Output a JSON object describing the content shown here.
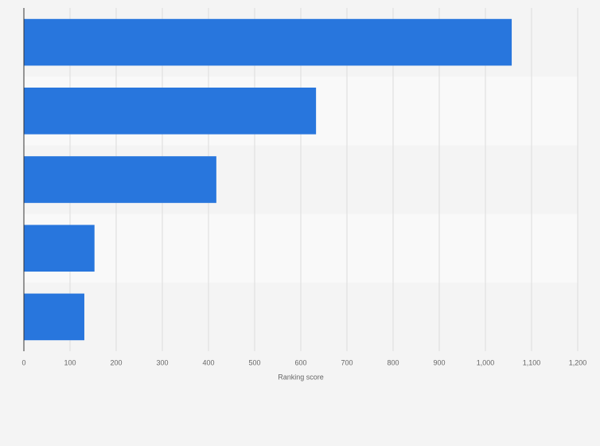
{
  "chart_data": {
    "type": "bar",
    "orientation": "horizontal",
    "x_label": "Ranking score",
    "categories": [
      null,
      null,
      null,
      null,
      null
    ],
    "values": [
      1057,
      633,
      417,
      153,
      131
    ],
    "color": "#2876dd",
    "xlim": [
      0,
      1200
    ],
    "xticks": [
      0,
      100,
      200,
      300,
      400,
      500,
      600,
      700,
      800,
      900,
      {
        "value": 1000,
        "label": "1,000"
      },
      {
        "value": 1100,
        "label": "1,100"
      },
      {
        "value": 1200,
        "label": "1,200"
      }
    ],
    "grid": true
  }
}
